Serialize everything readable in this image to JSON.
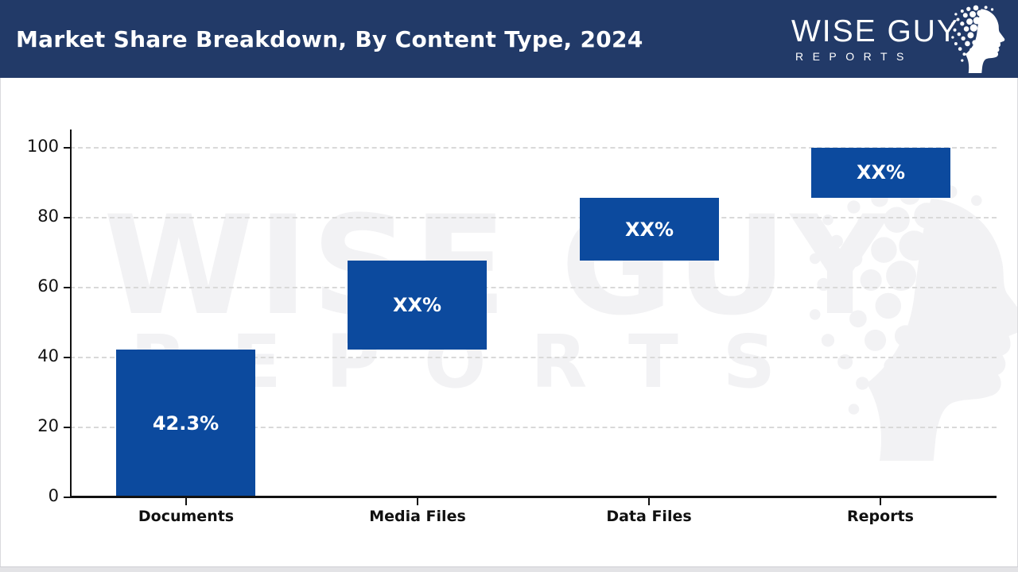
{
  "header": {
    "title": "Market Share Breakdown, By Content Type, 2024",
    "logo": {
      "line1": "WISE GUY",
      "line2": "REPORTS"
    }
  },
  "watermark": {
    "line1": "WISE GUY",
    "line2": "REPORTS"
  },
  "colors": {
    "header_bg": "#223a68",
    "bar": "#0c4a9e",
    "grid": "#d9d9d9",
    "axis": "#111111",
    "watermark": "#f2f2f4",
    "footer_strip": "#e3e3e6",
    "value_label": "#ffffff"
  },
  "chart_data": {
    "type": "waterfall",
    "title": "Market Share Breakdown, By Content Type, 2024",
    "categories": [
      "Documents",
      "Media Files",
      "Data Files",
      "Reports"
    ],
    "segments": [
      {
        "category": "Documents",
        "start": 0,
        "end": 42.3,
        "label": "42.3%"
      },
      {
        "category": "Media Files",
        "start": 42.3,
        "end": 67.7,
        "label": "XX%"
      },
      {
        "category": "Data Files",
        "start": 67.7,
        "end": 85.7,
        "label": "XX%"
      },
      {
        "category": "Reports",
        "start": 85.7,
        "end": 100,
        "label": "XX%"
      }
    ],
    "xlabel": "",
    "ylabel": "",
    "ylim": [
      0,
      100
    ],
    "yticks": [
      0,
      20,
      40,
      60,
      80,
      100
    ],
    "grid": "horizontal-dashed",
    "legend": null
  }
}
